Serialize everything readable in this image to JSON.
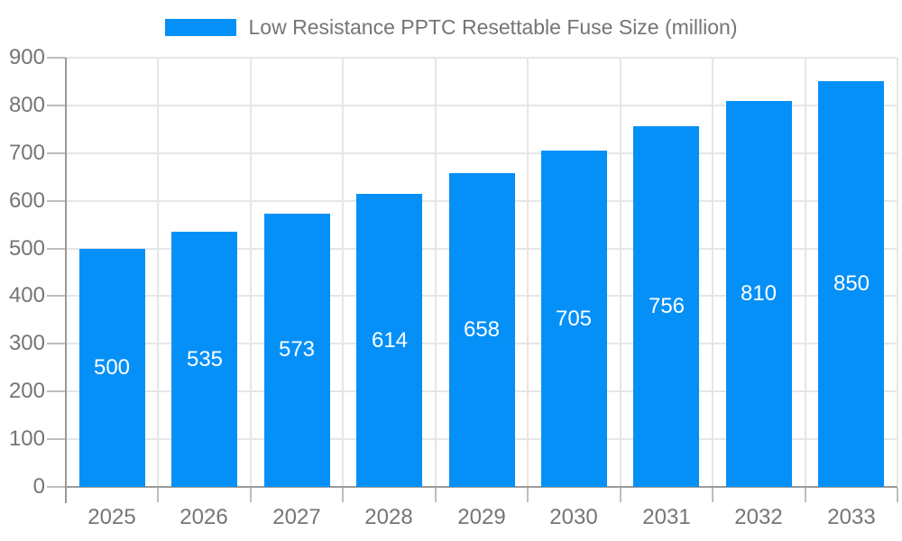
{
  "chart_data": {
    "type": "bar",
    "title": "Low Resistance PPTC Resettable Fuse Size (million)",
    "categories": [
      "2025",
      "2026",
      "2027",
      "2028",
      "2029",
      "2030",
      "2031",
      "2032",
      "2033"
    ],
    "values": [
      500,
      535,
      573,
      614,
      658,
      705,
      756,
      810,
      850
    ],
    "xlabel": "",
    "ylabel": "",
    "ylim": [
      0,
      900
    ],
    "ytick_interval": 100,
    "grid": true,
    "legend_position": "top",
    "bar_color": "#0590f8",
    "value_label_color": "#ffffff",
    "axis_label_color": "#757575",
    "grid_color": "#e6e6e6",
    "axis_line_color": "#9a9a9a",
    "tick_color": "#bdbdbd"
  }
}
